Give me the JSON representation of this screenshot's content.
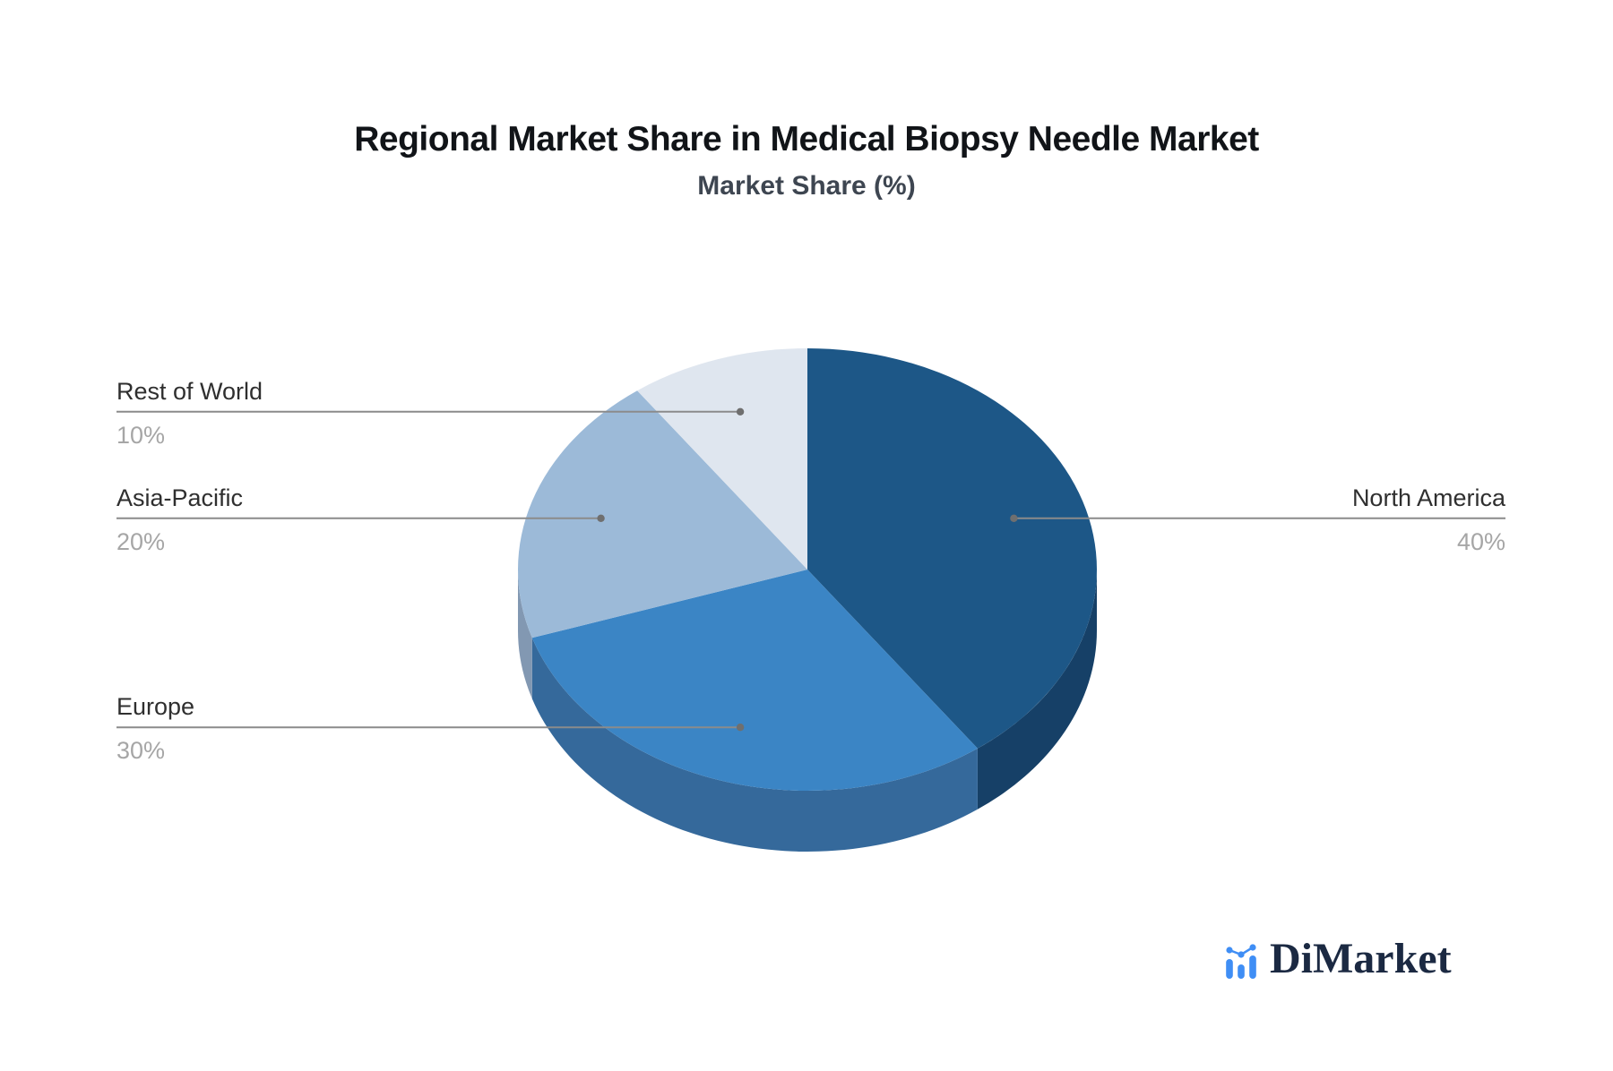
{
  "header": {
    "title": "Regional Market Share in Medical Biopsy Needle Market",
    "subtitle": "Market Share (%)"
  },
  "chart_data": {
    "type": "pie",
    "title": "Regional Market Share in Medical Biopsy Needle Market",
    "subtitle": "Market Share (%)",
    "unit": "%",
    "style": "3d-pie",
    "legend": "none",
    "start_angle_clockwise_from_top_deg": 0,
    "categories": [
      "North America",
      "Europe",
      "Asia-Pacific",
      "Rest of World"
    ],
    "values": [
      40,
      30,
      20,
      10
    ],
    "slices": [
      {
        "label": "North America",
        "value": 40,
        "display": "40%",
        "color_top": "#1d5787",
        "color_side": "#164067"
      },
      {
        "label": "Europe",
        "value": 30,
        "display": "30%",
        "color_top": "#3b85c5",
        "color_side": "#35699b"
      },
      {
        "label": "Asia-Pacific",
        "value": 20,
        "display": "20%",
        "color_top": "#9cbad8",
        "color_side": "#8298b2"
      },
      {
        "label": "Rest of World",
        "value": 10,
        "display": "10%",
        "color_top": "#dfe6ef",
        "color_side": "#c3cedd"
      }
    ],
    "leader_line_color": "#8b8b8b",
    "leader_dot_color": "#6f6f6f",
    "label_text_color": "#2f2f2f",
    "value_text_color": "#a6a6a6"
  },
  "logo": {
    "text": "DiMarket",
    "icon": "bar-chart-icon",
    "icon_color": "#3f8ef5",
    "text_color": "#1b2942"
  }
}
